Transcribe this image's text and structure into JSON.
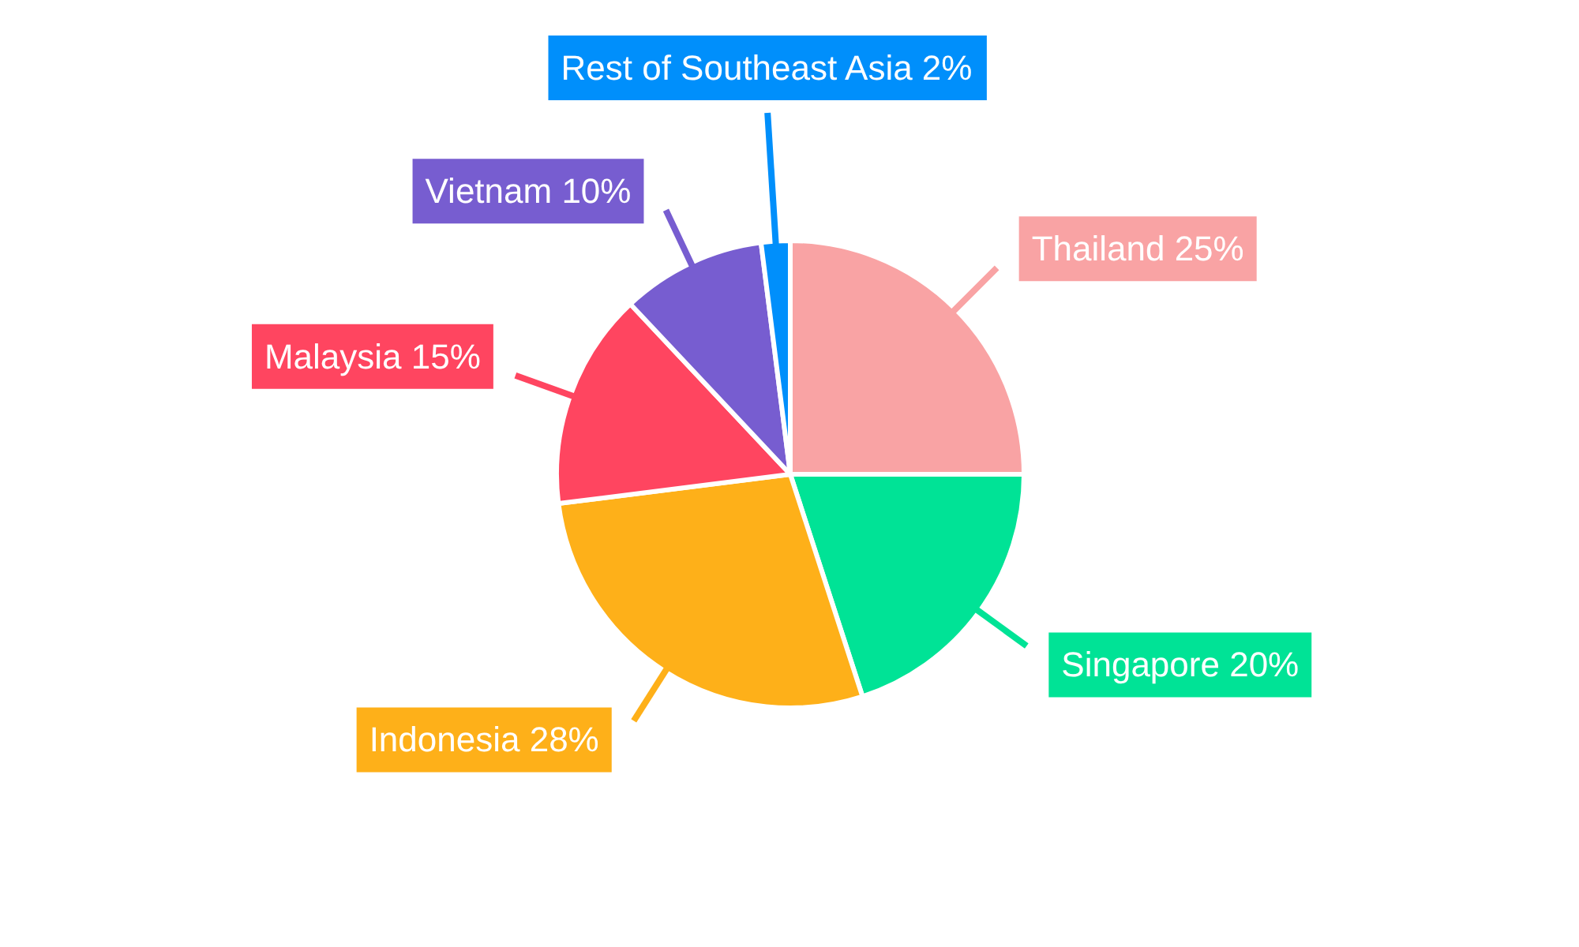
{
  "chart_data": {
    "type": "pie",
    "categories": [
      "Thailand",
      "Singapore",
      "Indonesia",
      "Malaysia",
      "Vietnam",
      "Rest of Southeast Asia"
    ],
    "values": [
      25,
      20,
      28,
      15,
      10,
      2
    ],
    "value_labels": [
      "25%",
      "20%",
      "28%",
      "15%",
      "10%",
      "2%"
    ],
    "colors": [
      "#f9a3a4",
      "#00e396",
      "#feb019",
      "#ff4560",
      "#775dd0",
      "#008ffb"
    ]
  }
}
